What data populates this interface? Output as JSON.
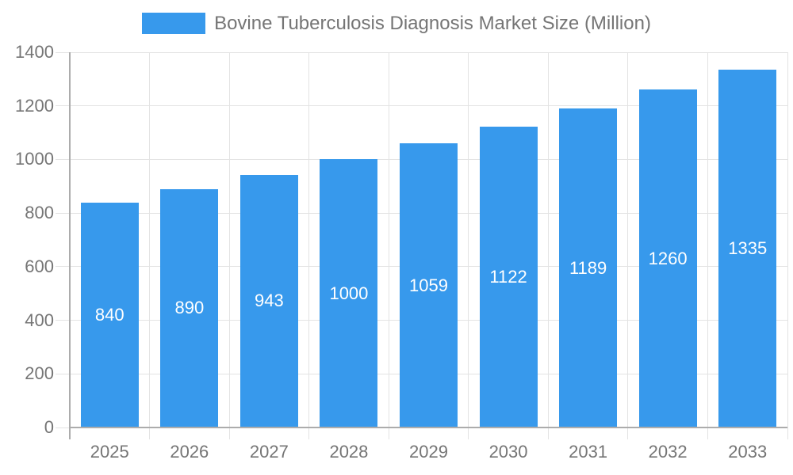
{
  "legend": {
    "items": [
      {
        "label": "Bovine Tuberculosis Diagnosis Market Size (Million)",
        "color": "#3799EC"
      }
    ]
  },
  "chart_data": {
    "type": "bar",
    "title": "Bovine Tuberculosis Diagnosis Market Size (Million)",
    "categories": [
      "2025",
      "2026",
      "2027",
      "2028",
      "2029",
      "2030",
      "2031",
      "2032",
      "2033"
    ],
    "series": [
      {
        "name": "Bovine Tuberculosis Diagnosis Market Size (Million)",
        "values": [
          840,
          890,
          943,
          1000,
          1059,
          1122,
          1189,
          1260,
          1335
        ]
      }
    ],
    "value_labels_shown": true,
    "xlabel": "",
    "ylabel": "",
    "ylim": [
      0,
      1400
    ],
    "yticks": [
      0,
      200,
      400,
      600,
      800,
      1000,
      1200,
      1400
    ],
    "grid": true,
    "legend_position": "top",
    "colors": {
      "bar": "#3799EC",
      "value_label": "#FFFFFF",
      "axis_line": "#ACACAC",
      "grid_line": "#E3E3E3",
      "tick_label": "#757575",
      "background": "#FFFFFF"
    }
  }
}
